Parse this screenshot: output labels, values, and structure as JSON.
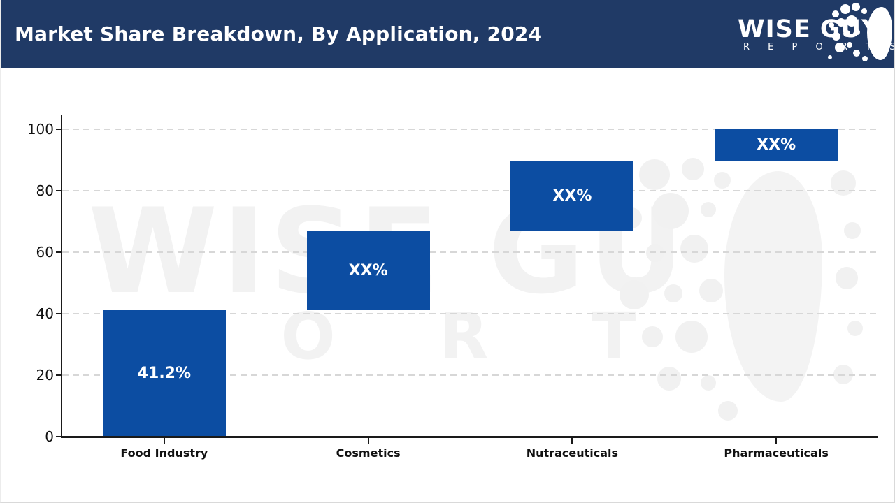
{
  "header": {
    "title": "Market Share Breakdown, By Application, 2024",
    "bg_color": "#203a66",
    "logo": {
      "line1": "WISE GUY",
      "line2": "R E P O R T S"
    }
  },
  "watermark": {
    "line1": "WISE GU",
    "line2": "P O R T S"
  },
  "chart_data": {
    "type": "bar",
    "subtype": "floating-segment-waterfall",
    "title": "Market Share Breakdown, By Application, 2024",
    "categories": [
      "Food Industry",
      "Cosmetics",
      "Nutraceuticals",
      "Pharmaceuticals"
    ],
    "series": [
      {
        "name": "Market Share %",
        "bars": [
          {
            "category": "Food Industry",
            "start": 0,
            "end": 41.2,
            "label": "41.2%"
          },
          {
            "category": "Cosmetics",
            "start": 41.2,
            "end": 66.8,
            "label": "XX%"
          },
          {
            "category": "Nutraceuticals",
            "start": 66.8,
            "end": 89.8,
            "label": "XX%"
          },
          {
            "category": "Pharmaceuticals",
            "start": 89.8,
            "end": 100,
            "label": "XX%"
          }
        ]
      }
    ],
    "xlabel": "",
    "ylabel": "",
    "ylim": [
      0,
      104.5
    ],
    "yticks": [
      0,
      20,
      40,
      60,
      80,
      100
    ],
    "grid": "horizontal-dashed",
    "legend": "none",
    "bar_color": "#0c4da2",
    "bar_label_color": "#ffffff",
    "axis_color": "#1a1a1a",
    "gridline_color": "#d7d7d7"
  }
}
